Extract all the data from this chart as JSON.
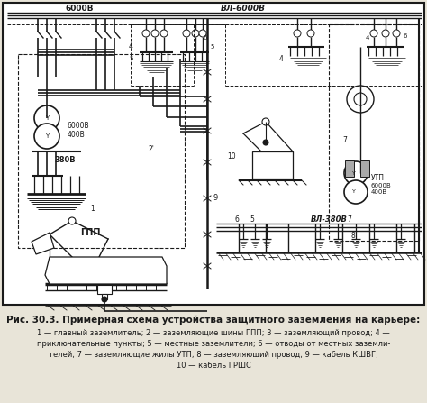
{
  "title_line1": "Рис. 30.3. Примерная схема устройства защитного заземления на карьере:",
  "caption_line2": "1 — главный заземлитель; 2 — заземляющие шины ГПП; 3 — заземляющий провод; 4 —",
  "caption_line3": "приключательные пункты; 5 — местные заземлители; 6 — отводы от местных заземли-",
  "caption_line4": "телей; 7 — заземляющие жилы УТП; 8 — заземляющий провод; 9 — кабель КШВГ;",
  "caption_line5": "10 — кабель ГРШС",
  "bg_color": "#e8e4d8",
  "line_color": "#1a1a1a",
  "fig_width": 4.74,
  "fig_height": 4.47,
  "dpi": 100
}
